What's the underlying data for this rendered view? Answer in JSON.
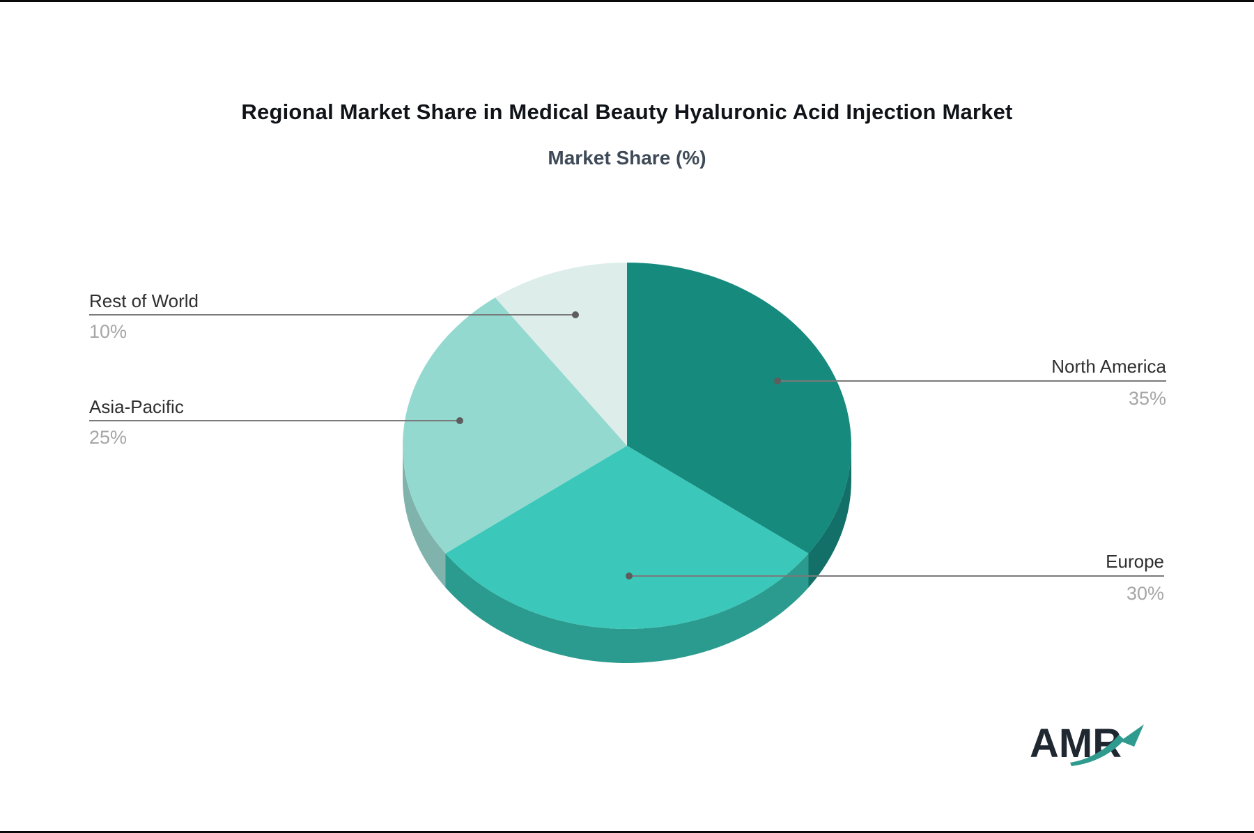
{
  "chart_data": {
    "type": "pie",
    "style": "3d-pie",
    "title": "Regional Market Share in Medical Beauty Hyaluronic Acid Injection Market",
    "subtitle": "Market Share (%)",
    "unit": "%",
    "direction": "clockwise",
    "start_angle_deg": 0,
    "legend_position": "callout-labels",
    "slices": [
      {
        "label": "North America",
        "value": 35,
        "display_value": "35%",
        "color": "#178a7e",
        "side_color": "#127068"
      },
      {
        "label": "Europe",
        "value": 30,
        "display_value": "30%",
        "color": "#3bc8ba",
        "side_color": "#2b9b8f"
      },
      {
        "label": "Asia-Pacific",
        "value": 25,
        "display_value": "25%",
        "color": "#93d9cf",
        "side_color": "#7fb3ab"
      },
      {
        "label": "Rest of World",
        "value": 10,
        "display_value": "10%",
        "color": "#ddedea"
      }
    ],
    "callout_line_color": "#7a7a7a",
    "callout_dot_color": "#5d5d5d",
    "label_text_color": "#2f2f2f",
    "value_text_color": "#a6a6a6"
  },
  "logo": {
    "text": "AMR",
    "text_color": "#1f2730",
    "arrow_color": "#2f9b8e"
  }
}
